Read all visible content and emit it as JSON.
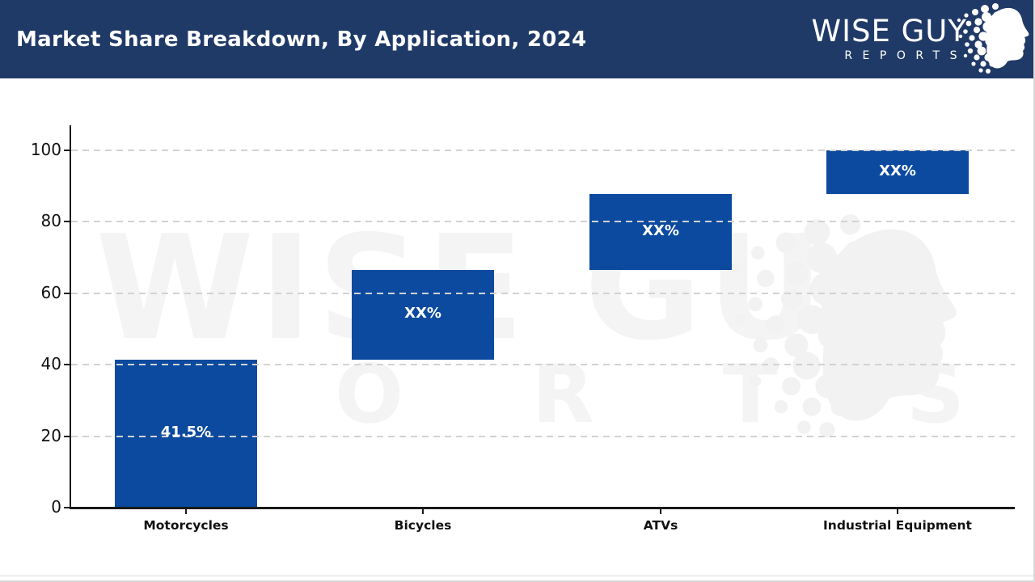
{
  "header": {
    "title": "Market Share Breakdown, By Application, 2024",
    "bg_color": "#203a68",
    "logo": {
      "line1": "WISE GUY",
      "line2": "REPORTS",
      "face_icon": "dotted-head-profile-icon"
    }
  },
  "watermark": {
    "line1": "WISE GU",
    "line2": "P O R T S",
    "face_icon": "dotted-head-profile-icon",
    "color": "#f4f4f4"
  },
  "chart_data": {
    "type": "bar",
    "subtype": "waterfall-floating-bars",
    "title": "Market Share Breakdown, By Application, 2024",
    "xlabel": "",
    "ylabel": "",
    "ylim": [
      0,
      100
    ],
    "yticks": [
      0,
      20,
      40,
      60,
      80,
      100
    ],
    "ytick_labels": [
      "0",
      "20",
      "40",
      "60",
      "80",
      "100"
    ],
    "grid": "horizontal dashed",
    "grid_color": "#d2d2d2",
    "bar_color": "#0b4a9e",
    "value_label_color": "#ffffff",
    "categories": [
      "Motorcycles",
      "Bicycles",
      "ATVs",
      "Industrial Equipment"
    ],
    "segments": [
      {
        "category": "Motorcycles",
        "start": 0,
        "end": 41.5,
        "label": "41.5%",
        "value_shown": "41.5%"
      },
      {
        "category": "Bicycles",
        "start": 41.5,
        "end": 66.6,
        "label": "XX%",
        "value_shown": "XX% (approx. 25, hidden)"
      },
      {
        "category": "ATVs",
        "start": 66.6,
        "end": 87.7,
        "label": "XX%",
        "value_shown": "XX% (approx. 21, hidden)"
      },
      {
        "category": "Industrial Equipment",
        "start": 87.7,
        "end": 100,
        "label": "XX%",
        "value_shown": "XX% (approx. 12, hidden)"
      }
    ]
  }
}
